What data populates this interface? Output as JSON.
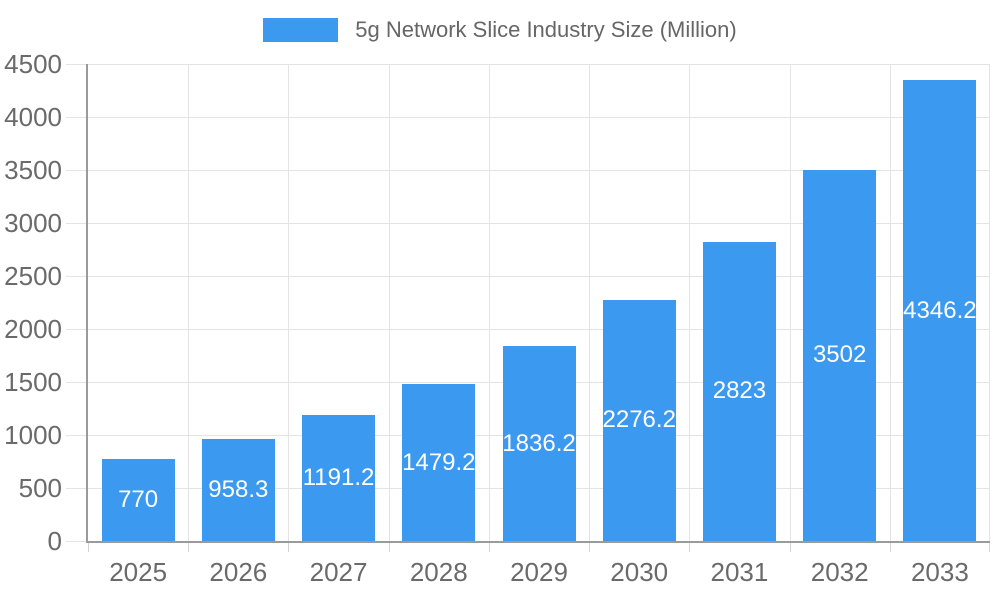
{
  "legend": {
    "label": "5g Network Slice Industry Size (Million)",
    "swatch_color": "#3b99f0"
  },
  "chart_data": {
    "type": "bar",
    "title": "5g Network Slice Industry Size (Million)",
    "categories": [
      "2025",
      "2026",
      "2027",
      "2028",
      "2029",
      "2030",
      "2031",
      "2032",
      "2033"
    ],
    "values": [
      770,
      958.3,
      1191.2,
      1479.2,
      1836.2,
      2276.2,
      2823,
      3502,
      4346.2
    ],
    "value_labels": [
      "770",
      "958.3",
      "1191.2",
      "1479.2",
      "1836.2",
      "2276.2",
      "2823",
      "3502",
      "4346.2"
    ],
    "xlabel": "",
    "ylabel": "",
    "ylim": [
      0,
      4500
    ],
    "ytick_interval": 500,
    "ytick_labels": [
      "0",
      "500",
      "1000",
      "1500",
      "2000",
      "2500",
      "3000",
      "3500",
      "4000",
      "4500"
    ],
    "grid": true,
    "legend_position": "top-center",
    "bar_color": "#3b99f0",
    "bar_value_label_color": "#ffffff",
    "axis_text_color": "#6a6a6a",
    "grid_color": "#e4e4e4",
    "axis_line_color": "#9a9a9a"
  }
}
